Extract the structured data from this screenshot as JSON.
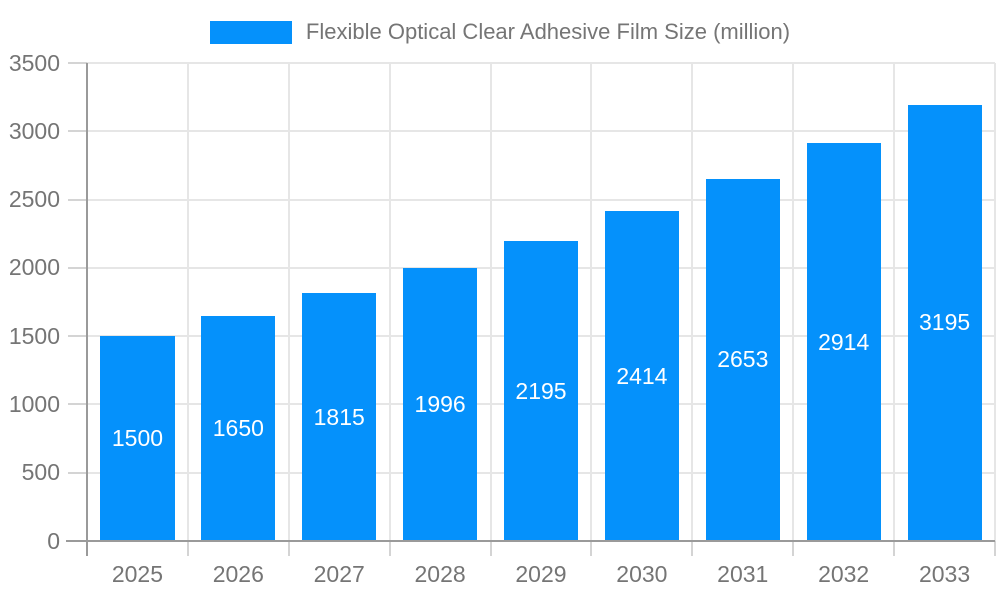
{
  "page": {
    "background": "#ffffff"
  },
  "chart_data": {
    "type": "bar",
    "title": "Flexible Optical Clear Adhesive Film Size (million)",
    "categories": [
      "2025",
      "2026",
      "2027",
      "2028",
      "2029",
      "2030",
      "2031",
      "2032",
      "2033"
    ],
    "values": [
      1500,
      1650,
      1815,
      1996,
      2195,
      2414,
      2653,
      2914,
      3195
    ],
    "xlabel": "",
    "ylabel": "",
    "ylim": [
      0,
      3500
    ],
    "yticks": [
      0,
      500,
      1000,
      1500,
      2000,
      2500,
      3000,
      3500
    ],
    "grid": true,
    "legend_position": "top-center",
    "value_labels": "inside-center",
    "colors": {
      "bar": "#0591fb",
      "value_label": "#ffffff",
      "axis_text": "#757575",
      "grid_line": "#e6e6e6",
      "axis_line": "#9a9a9a",
      "tick_line": "#d4d4d4"
    }
  }
}
